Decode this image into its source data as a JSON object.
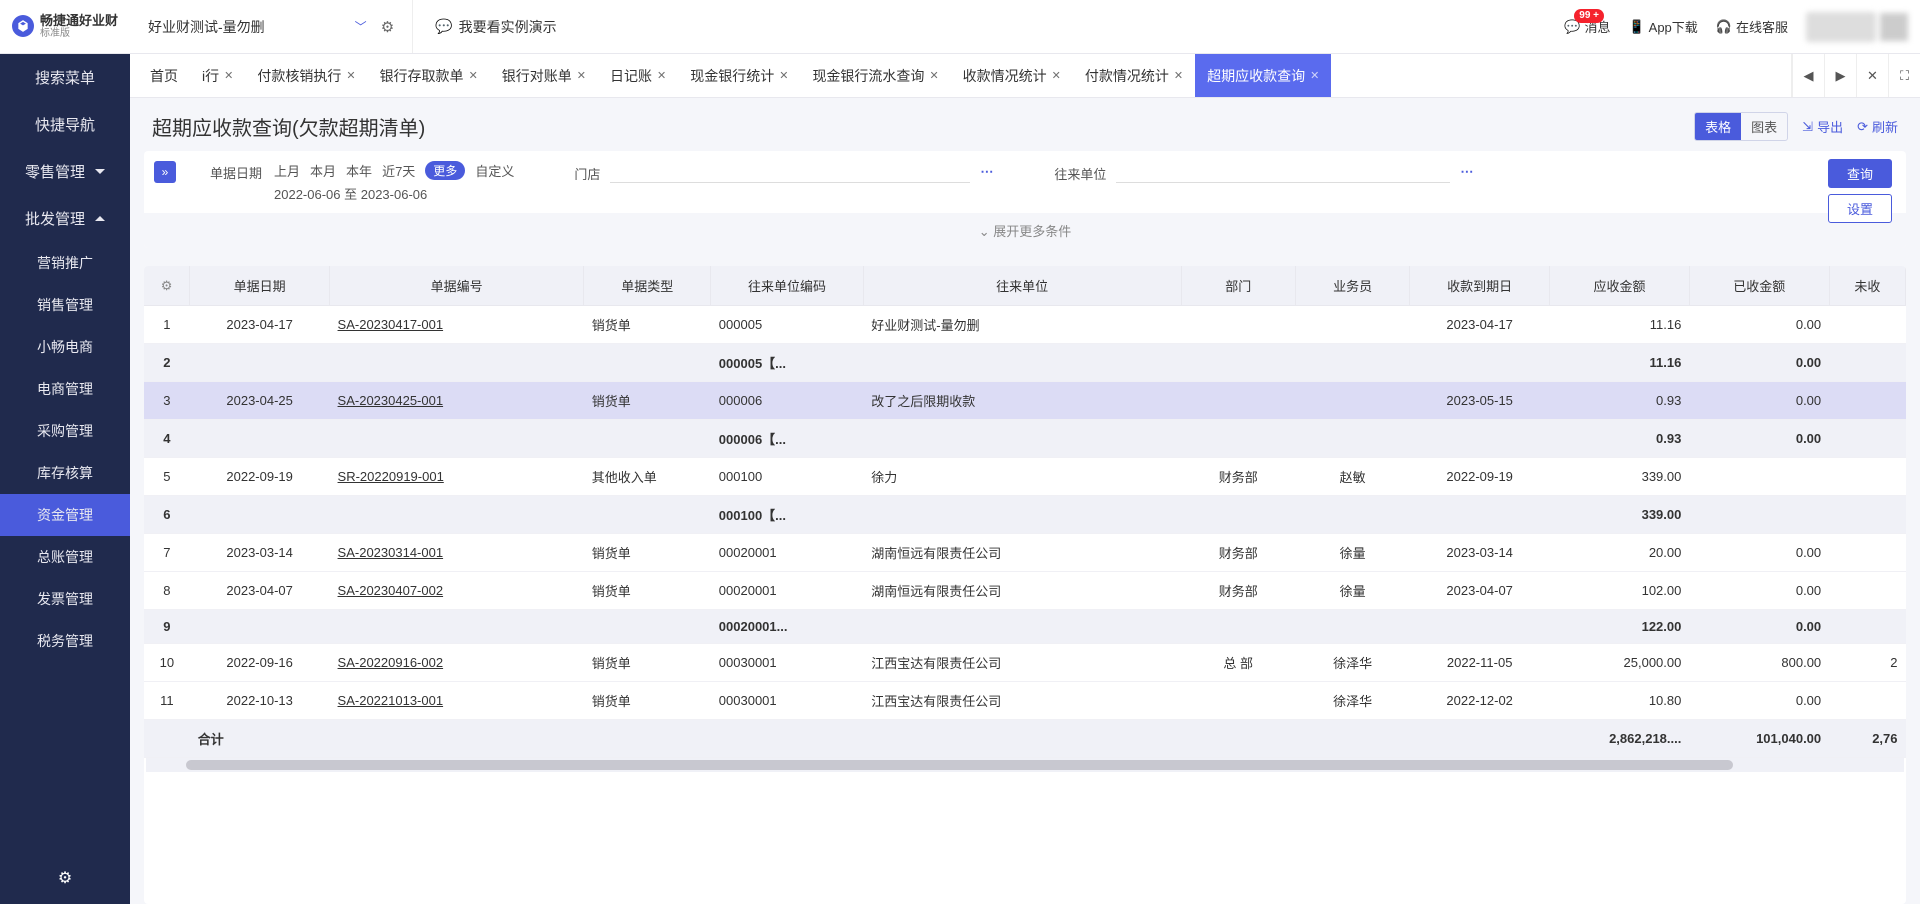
{
  "header": {
    "logo_main": "畅捷通好业财",
    "logo_sub": "标准版",
    "company": "好业财测试-量勿删",
    "demo": "我要看实例演示",
    "msg_label": "消息",
    "msg_badge": "99 +",
    "app_label": "App下载",
    "support_label": "在线客服"
  },
  "sidebar": {
    "items": [
      {
        "label": "搜索菜单",
        "cls": ""
      },
      {
        "label": "快捷导航",
        "cls": ""
      },
      {
        "label": "零售管理",
        "cls": "has-arrow arrow-down"
      },
      {
        "label": "批发管理",
        "cls": "has-arrow arrow-up"
      },
      {
        "label": "营销推广",
        "cls": "indent"
      },
      {
        "label": "销售管理",
        "cls": "indent"
      },
      {
        "label": "小畅电商",
        "cls": "indent"
      },
      {
        "label": "电商管理",
        "cls": "indent"
      },
      {
        "label": "采购管理",
        "cls": "indent"
      },
      {
        "label": "库存核算",
        "cls": "indent"
      },
      {
        "label": "资金管理",
        "cls": "indent active"
      },
      {
        "label": "总账管理",
        "cls": "indent"
      },
      {
        "label": "发票管理",
        "cls": "indent"
      },
      {
        "label": "税务管理",
        "cls": "indent"
      }
    ]
  },
  "tabs": [
    {
      "label": "首页",
      "closable": false
    },
    {
      "label": "i行",
      "closable": true
    },
    {
      "label": "付款核销执行",
      "closable": true
    },
    {
      "label": "银行存取款单",
      "closable": true
    },
    {
      "label": "银行对账单",
      "closable": true
    },
    {
      "label": "日记账",
      "closable": true
    },
    {
      "label": "现金银行统计",
      "closable": true
    },
    {
      "label": "现金银行流水查询",
      "closable": true
    },
    {
      "label": "收款情况统计",
      "closable": true
    },
    {
      "label": "付款情况统计",
      "closable": true
    },
    {
      "label": "超期应收款查询",
      "closable": true,
      "active": true
    }
  ],
  "page": {
    "title": "超期应收款查询(欠款超期清单)",
    "view_table": "表格",
    "view_chart": "图表",
    "export": "导出",
    "refresh": "刷新"
  },
  "filter": {
    "date_label": "单据日期",
    "sc_lastmonth": "上月",
    "sc_thismonth": "本月",
    "sc_thisyear": "本年",
    "sc_7d": "近7天",
    "sc_more": "更多",
    "sc_custom": "自定义",
    "range": "2022-06-06 至 2023-06-06",
    "store_label": "门店",
    "partner_label": "往来单位",
    "query": "查询",
    "settings": "设置",
    "expand": "展开更多条件"
  },
  "table": {
    "h_date": "单据日期",
    "h_docno": "单据编号",
    "h_doctype": "单据类型",
    "h_code": "往来单位编码",
    "h_partner": "往来单位",
    "h_dept": "部门",
    "h_sales": "业务员",
    "h_due": "收款到期日",
    "h_recv": "应收金额",
    "h_paid": "已收金额",
    "h_last": "未收",
    "total_label": "合计",
    "total_recv": "2,862,218....",
    "total_paid": "101,040.00",
    "total_last": "2,76"
  },
  "rows": [
    {
      "idx": "1",
      "date": "2023-04-17",
      "docno": "SA-20230417-001",
      "type": "销货单",
      "code": "000005",
      "partner": "好业财测试-量勿删",
      "dept": "",
      "sales": "",
      "due": "2023-04-17",
      "recv": "11.16",
      "paid": "0.00",
      "last": "",
      "cls": ""
    },
    {
      "idx": "2",
      "date": "",
      "docno": "",
      "type": "",
      "code": "000005【...",
      "partner": "",
      "dept": "",
      "sales": "",
      "due": "",
      "recv": "11.16",
      "paid": "0.00",
      "last": "",
      "cls": "subtotal"
    },
    {
      "idx": "3",
      "date": "2023-04-25",
      "docno": "SA-20230425-001",
      "type": "销货单",
      "code": "000006",
      "partner": "改了之后限期收款",
      "dept": "",
      "sales": "",
      "due": "2023-05-15",
      "recv": "0.93",
      "paid": "0.00",
      "last": "",
      "cls": "highlight"
    },
    {
      "idx": "4",
      "date": "",
      "docno": "",
      "type": "",
      "code": "000006【...",
      "partner": "",
      "dept": "",
      "sales": "",
      "due": "",
      "recv": "0.93",
      "paid": "0.00",
      "last": "",
      "cls": "subtotal"
    },
    {
      "idx": "5",
      "date": "2022-09-19",
      "docno": "SR-20220919-001",
      "type": "其他收入单",
      "code": "000100",
      "partner": "徐力",
      "dept": "财务部",
      "sales": "赵敏",
      "due": "2022-09-19",
      "recv": "339.00",
      "paid": "",
      "last": "",
      "cls": ""
    },
    {
      "idx": "6",
      "date": "",
      "docno": "",
      "type": "",
      "code": "000100【...",
      "partner": "",
      "dept": "",
      "sales": "",
      "due": "",
      "recv": "339.00",
      "paid": "",
      "last": "",
      "cls": "subtotal"
    },
    {
      "idx": "7",
      "date": "2023-03-14",
      "docno": "SA-20230314-001",
      "type": "销货单",
      "code": "00020001",
      "partner": "湖南恒远有限责任公司",
      "dept": "财务部",
      "sales": "徐量",
      "due": "2023-03-14",
      "recv": "20.00",
      "paid": "0.00",
      "last": "",
      "cls": ""
    },
    {
      "idx": "8",
      "date": "2023-04-07",
      "docno": "SA-20230407-002",
      "type": "销货单",
      "code": "00020001",
      "partner": "湖南恒远有限责任公司",
      "dept": "财务部",
      "sales": "徐量",
      "due": "2023-04-07",
      "recv": "102.00",
      "paid": "0.00",
      "last": "",
      "cls": ""
    },
    {
      "idx": "9",
      "date": "",
      "docno": "",
      "type": "",
      "code": "00020001...",
      "partner": "",
      "dept": "",
      "sales": "",
      "due": "",
      "recv": "122.00",
      "paid": "0.00",
      "last": "",
      "cls": "subtotal"
    },
    {
      "idx": "10",
      "date": "2022-09-16",
      "docno": "SA-20220916-002",
      "type": "销货单",
      "code": "00030001",
      "partner": "江西宝达有限责任公司",
      "dept": "总 部",
      "sales": "徐泽华",
      "due": "2022-11-05",
      "recv": "25,000.00",
      "paid": "800.00",
      "last": "2",
      "cls": ""
    },
    {
      "idx": "11",
      "date": "2022-10-13",
      "docno": "SA-20221013-001",
      "type": "销货单",
      "code": "00030001",
      "partner": "江西宝达有限责任公司",
      "dept": "",
      "sales": "徐泽华",
      "due": "2022-12-02",
      "recv": "10.80",
      "paid": "0.00",
      "last": "",
      "cls": ""
    }
  ]
}
